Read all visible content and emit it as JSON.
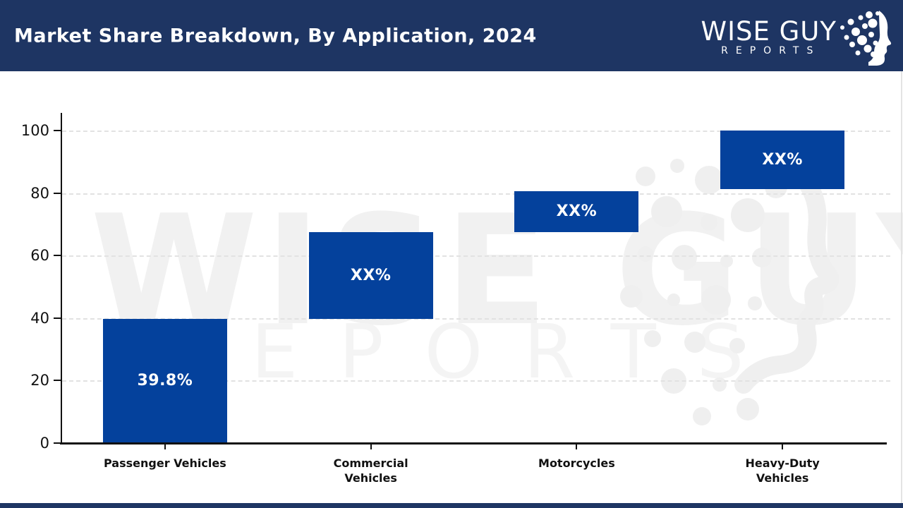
{
  "header": {
    "title": "Market Share Breakdown, By Application, 2024",
    "logo": {
      "brand": "WISE GUY",
      "sub": "REPORTS"
    }
  },
  "watermark": {
    "brand": "WISE GUY",
    "sub": "REPORTS"
  },
  "chart_data": {
    "type": "bar",
    "subtype": "floating-waterfall",
    "title": "Market Share Breakdown, By Application, 2024",
    "categories": [
      "Passenger Vehicles",
      "Commercial Vehicles",
      "Motorcycles",
      "Heavy-Duty Vehicles"
    ],
    "category_label_lines": [
      [
        "Passenger Vehicles"
      ],
      [
        "Commercial",
        "Vehicles"
      ],
      [
        "Motorcycles"
      ],
      [
        "Heavy-Duty",
        "Vehicles"
      ]
    ],
    "segments": [
      {
        "category": "Passenger Vehicles",
        "start": 0,
        "end": 39.8,
        "label": "39.8%"
      },
      {
        "category": "Commercial Vehicles",
        "start": 39.8,
        "end": 67.5,
        "label": "XX%"
      },
      {
        "category": "Motorcycles",
        "start": 67.5,
        "end": 80.7,
        "label": "XX%"
      },
      {
        "category": "Heavy-Duty Vehicles",
        "start": 81.2,
        "end": 100,
        "label": "XX%"
      }
    ],
    "xlabel": "",
    "ylabel": "",
    "ylim": [
      0,
      105
    ],
    "yticks": [
      0,
      20,
      40,
      60,
      80,
      100
    ],
    "grid": "horizontal-dashed",
    "legend": "none",
    "bar_color": "#04419c",
    "bar_label_color": "#ffffff"
  },
  "colors": {
    "header_bg": "#1e3563",
    "footer_bg": "#1e3563",
    "axis": "#111111",
    "gridline": "#e2e2e2",
    "watermark": "#f1f1f1"
  }
}
